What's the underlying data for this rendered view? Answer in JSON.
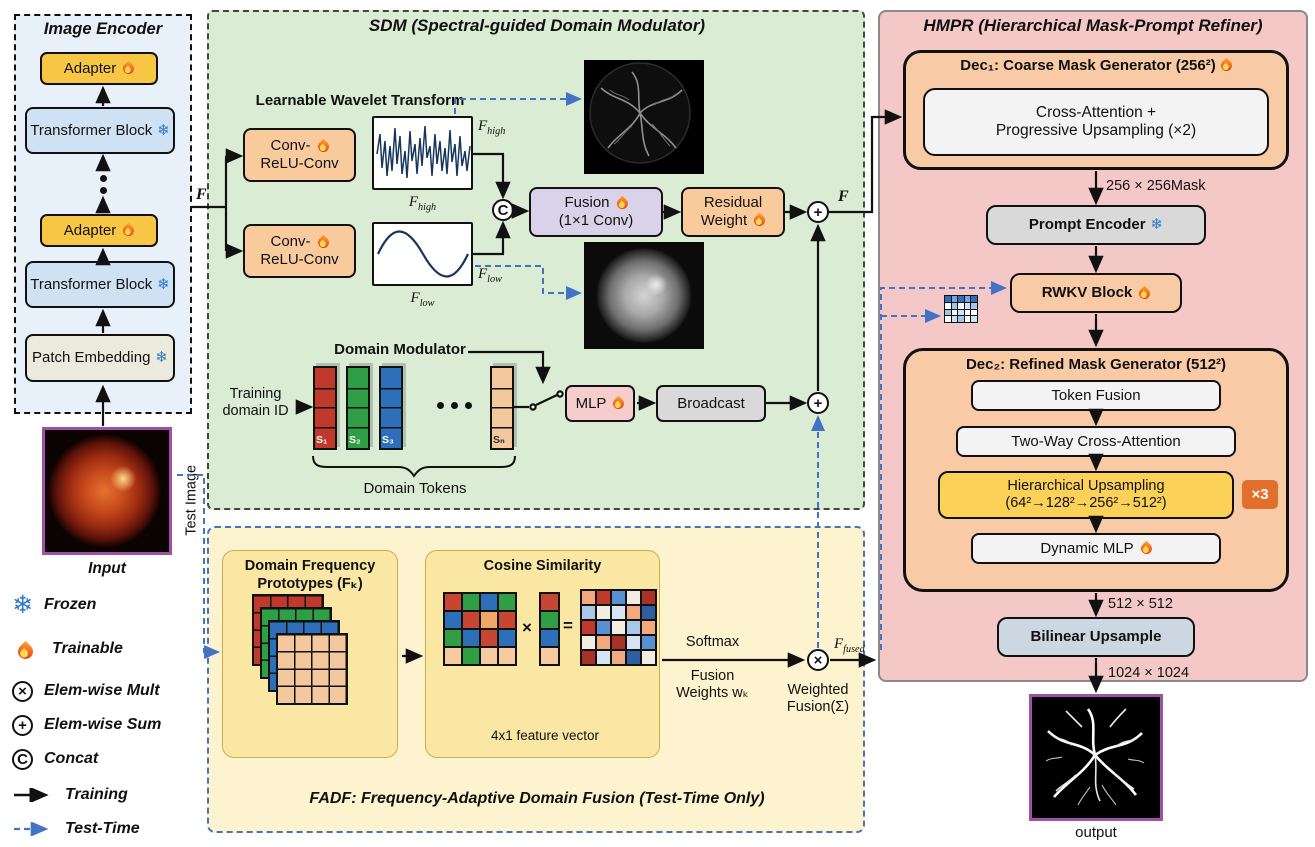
{
  "icons": {
    "snowflake": "❄",
    "plus": "+",
    "times": "×",
    "concat": "C"
  },
  "labels": {
    "F": "F",
    "high": "high",
    "low": "low",
    "fused": "fused",
    "times": "×",
    "equals": "="
  },
  "encoder": {
    "title": "Image Encoder",
    "adapter": "Adapter",
    "transformer": "Transformer Block",
    "patch": "Patch Embedding",
    "input_caption": "Input"
  },
  "sdm": {
    "title": "SDM (Spectral-guided Domain Modulator)",
    "wavelet_title": "Learnable Wavelet Transform",
    "conv_line1": "Conv-",
    "conv_line2": "ReLU-Conv",
    "fusion_line1": "Fusion",
    "fusion_line2": "(1×1 Conv)",
    "residual_line1": "Residual",
    "residual_line2": "Weight",
    "modulator_title": "Domain Modulator",
    "training_id_line1": "Training",
    "training_id_line2": "domain ID",
    "mlp": "MLP",
    "broadcast": "Broadcast",
    "tokens_caption": "Domain Tokens",
    "tokens": [
      {
        "label": "S₁",
        "color": "#c0392b"
      },
      {
        "label": "S₂",
        "color": "#2f9e44"
      },
      {
        "label": "S₃",
        "color": "#2e6fba"
      },
      {
        "label": "Sₙ",
        "color": "#f3c89d"
      }
    ]
  },
  "fadf": {
    "test_image": "Test Image",
    "proto_line1": "Domain Frequency",
    "proto_line2": "Prototypes (Fₖ)",
    "proto_colors": [
      "#c0392b",
      "#2f9e44",
      "#2e6fba",
      "#f3c89d"
    ],
    "cosine_title": "Cosine Similarity",
    "vector_caption": "4x1 feature vector",
    "softmax": "Softmax",
    "weights_line1": "Fusion",
    "weights_line2": "Weights wₖ",
    "weighted_line1": "Weighted",
    "weighted_line2": "Fusion(Σ)",
    "title": "FADF: Frequency-Adaptive Domain Fusion (Test-Time Only)",
    "cosine_grid": [
      [
        "#c74632",
        "#2f9e44",
        "#2e6fba",
        "#2f9e44"
      ],
      [
        "#2e6fba",
        "#c74632",
        "#f0a868",
        "#c74632"
      ],
      [
        "#2f9e44",
        "#2e6fba",
        "#c74632",
        "#2e6fba"
      ],
      [
        "#f6cba2",
        "#2f9e44",
        "#f6cba2",
        "#f6cba2"
      ]
    ],
    "cosine_vector": [
      [
        "#c74632"
      ],
      [
        "#2f9e44"
      ],
      [
        "#2e6fba"
      ],
      [
        "#f6cba2"
      ]
    ],
    "similarity_grid": [
      [
        "#f2a97e",
        "#c0392b",
        "#5b8fd4",
        "#f3ede1",
        "#a93226"
      ],
      [
        "#aac7e8",
        "#f3ede1",
        "#d7e3f4",
        "#f2a97e",
        "#2e5fa3"
      ],
      [
        "#c0392b",
        "#5b8fd4",
        "#f3ede1",
        "#aac7e8",
        "#f2a97e"
      ],
      [
        "#f3ede1",
        "#f2a97e",
        "#a93226",
        "#d7e3f4",
        "#5b8fd4"
      ],
      [
        "#a93226",
        "#d7e3f4",
        "#f2a97e",
        "#2e5fa3",
        "#f3ede1"
      ]
    ]
  },
  "hmpr": {
    "title": "HMPR (Hierarchical Mask-Prompt Refiner)",
    "dec1_title": "Dec₁: Coarse Mask Generator (256²)",
    "dec1_inner_line1": "Cross-Attention +",
    "dec1_inner_line2": "Progressive Upsampling (×2)",
    "mask_label": "256 × 256Mask",
    "prompt_encoder": "Prompt Encoder",
    "rwkv": "RWKV Block",
    "dec2_title": "Dec₂: Refined Mask Generator (512²)",
    "token_fusion": "Token Fusion",
    "two_way": "Two-Way Cross-Attention",
    "hier_line1": "Hierarchical Upsampling",
    "hier_line2": "(64²→128²→256²→512²)",
    "x3": "×3",
    "dynamic_mlp": "Dynamic MLP",
    "size_512": "512 × 512",
    "bilinear": "Bilinear Upsample",
    "size_1024": "1024 × 1024",
    "output_caption": "output",
    "grid_icon": [
      [
        "#2e6fba",
        "#6fa8dc",
        "#2e6fba",
        "#6fa8dc",
        "#2e6fba"
      ],
      [
        "#ffffff",
        "#9fc5e8",
        "#ffffff",
        "#cfe2f3",
        "#9fc5e8"
      ],
      [
        "#9fc5e8",
        "#ffffff",
        "#cfe2f3",
        "#ffffff",
        "#ffffff"
      ],
      [
        "#ffffff",
        "#cfe2f3",
        "#9fc5e8",
        "#ffffff",
        "#cfe2f3"
      ]
    ]
  },
  "legend": {
    "frozen": "Frozen",
    "trainable": "Trainable",
    "mult": "Elem-wise Mult",
    "sum": "Elem-wise Sum",
    "concat": "Concat",
    "training": "Training",
    "test_time": "Test-Time"
  }
}
